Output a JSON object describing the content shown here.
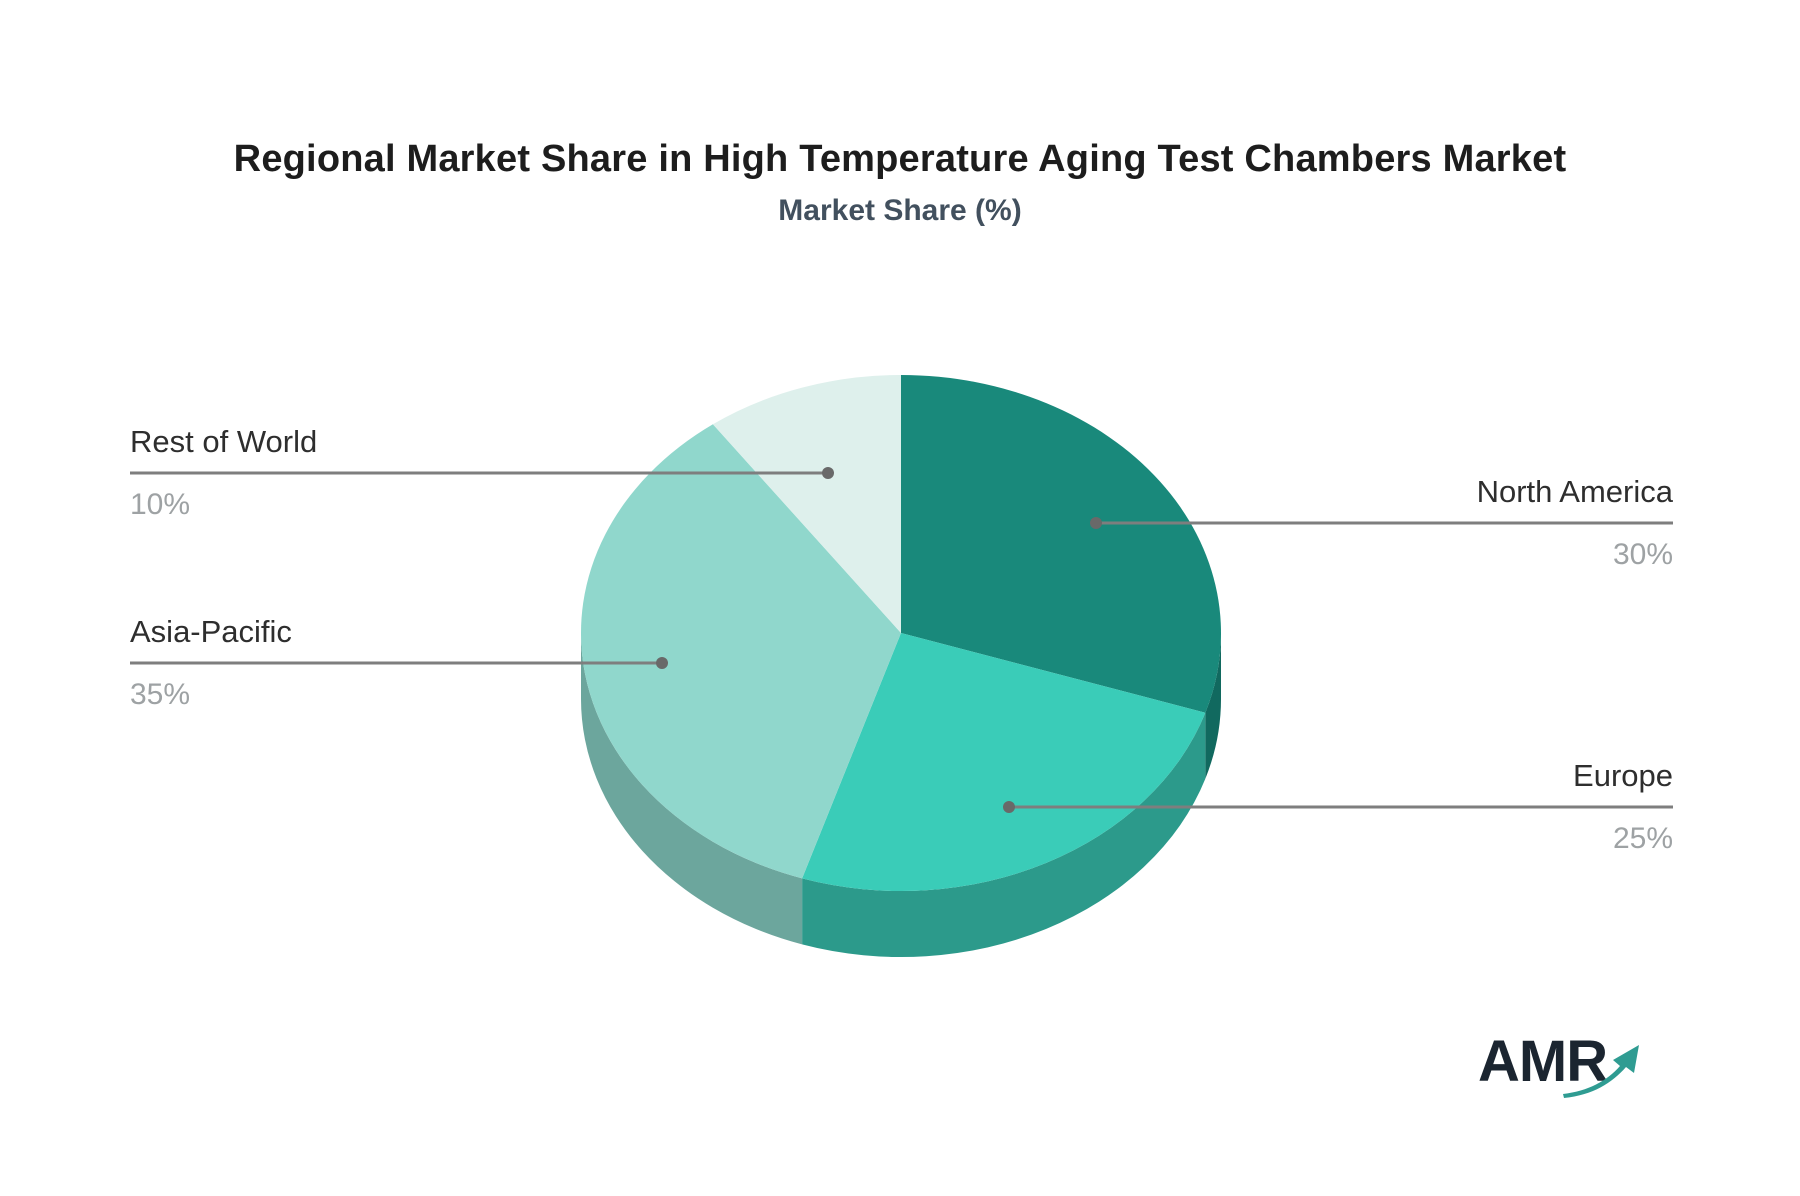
{
  "header": {
    "title": "Regional Market Share in High Temperature Aging Test Chambers Market",
    "subtitle": "Market Share (%)"
  },
  "chart_data": {
    "type": "pie",
    "title": "Regional Market Share in High Temperature Aging Test Chambers Market",
    "subtitle": "Market Share (%)",
    "unit": "%",
    "effect_3d": true,
    "start_angle_deg": 0,
    "direction": "clockwise",
    "legend_position": "callout-labels",
    "slices": [
      {
        "label": "North America",
        "value": 30,
        "value_label": "30%",
        "color": "#19897B",
        "side_color": "#11695F"
      },
      {
        "label": "Europe",
        "value": 25,
        "value_label": "25%",
        "color": "#3ACCB8",
        "side_color": "#2C9A8B"
      },
      {
        "label": "Asia-Pacific",
        "value": 35,
        "value_label": "35%",
        "color": "#90D7CC",
        "side_color": "#6CA69D"
      },
      {
        "label": "Rest of World",
        "value": 10,
        "value_label": "10%",
        "color": "#DEF0EC",
        "side_color": "#BAD6D0"
      }
    ]
  },
  "styles": {
    "leader_line_color": "#7e7e7e",
    "leader_dot_color": "#696969",
    "label_color": "#2e2e2e",
    "pct_color": "#9ea2a4",
    "title_color": "#1d1d1d",
    "subtitle_color": "#42505e"
  },
  "logo": {
    "text": "AMR",
    "arrow_color": "#2F9C92",
    "text_color": "#1b2530"
  }
}
